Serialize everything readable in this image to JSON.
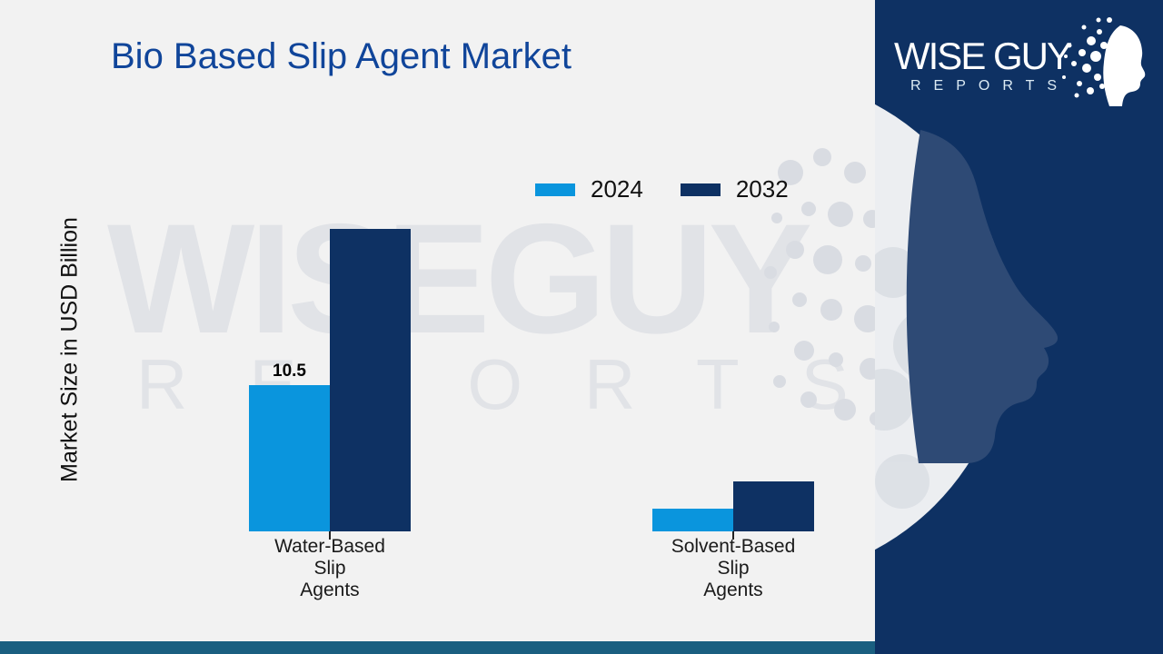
{
  "page": {
    "title": "Bio Based Slip Agent Market",
    "background": "#f2f2f2",
    "accent_teal": "#1a5f80",
    "navy": "#0e3163",
    "title_color": "#10459a"
  },
  "logo": {
    "line1": "WISE GUY",
    "line2": "REPORTS"
  },
  "watermark": {
    "line1": "WISEGUY",
    "line2": "REPORTS"
  },
  "legend": {
    "items": [
      {
        "label": "2024",
        "color": "#0a95dd"
      },
      {
        "label": "2032",
        "color": "#0e3163"
      }
    ]
  },
  "chart_data": {
    "type": "bar",
    "title": "Bio Based Slip Agent Market",
    "xlabel": "",
    "ylabel": "Market Size in USD Billion",
    "categories": [
      "Water-Based\nSlip\nAgents",
      "Solvent-Based\nSlip\nAgents"
    ],
    "series": [
      {
        "name": "2024",
        "color": "#0a95dd",
        "values": [
          10.5,
          1.6
        ]
      },
      {
        "name": "2032",
        "color": "#0e3163",
        "values": [
          21.7,
          3.6
        ]
      }
    ],
    "value_labels": [
      [
        "10.5",
        ""
      ],
      [
        "",
        ""
      ]
    ],
    "ylim": [
      0,
      23
    ],
    "grid": false,
    "legend_position": "top"
  }
}
